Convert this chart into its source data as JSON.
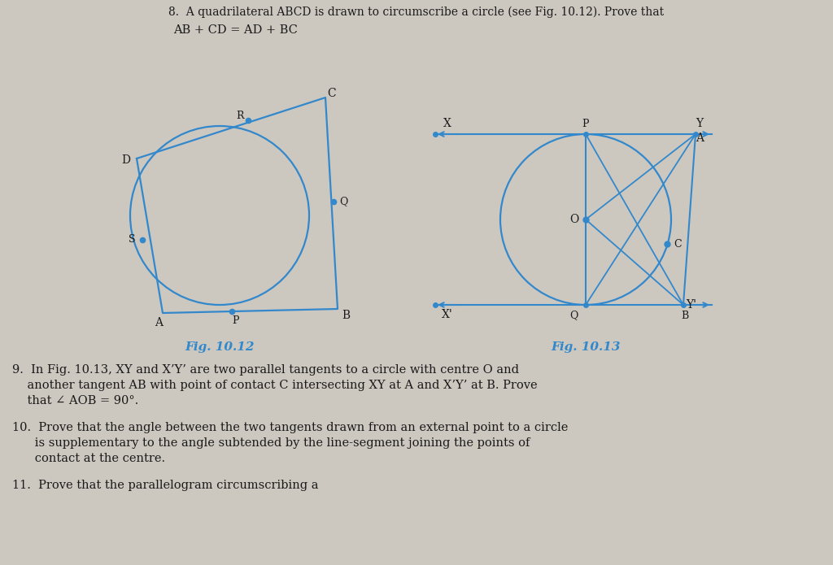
{
  "bg_color": "#ccc8c0",
  "text_color": "#1a1a1a",
  "blue_color": "#3388cc",
  "fig1_label": "Fig. 10.12",
  "fig2_label": "Fig. 10.13",
  "title_line1": "8.  A quadrilateral ABCD is drawn to circumscribe a circle (see Fig. 10.12). Prove that",
  "title_line2": "AB + CD = AD + BC",
  "item9_a": "9.  In Fig. 10.13, XY and X’Y’ are two parallel tangents to a circle with centre O and",
  "item9_b": "    another tangent AB with point of contact C intersecting XY at A and X’Y’ at B. Prove",
  "item9_c": "    that ∠ AOB = 90°.",
  "item10_a": "10.  Prove that the angle between the two tangents drawn from an external point to a circle",
  "item10_b": "      is supplementary to the angle subtended by the line-segment joining the points of",
  "item10_c": "      contact at the centre.",
  "item11": "11.  Prove that the parallelogram circumscribing a"
}
